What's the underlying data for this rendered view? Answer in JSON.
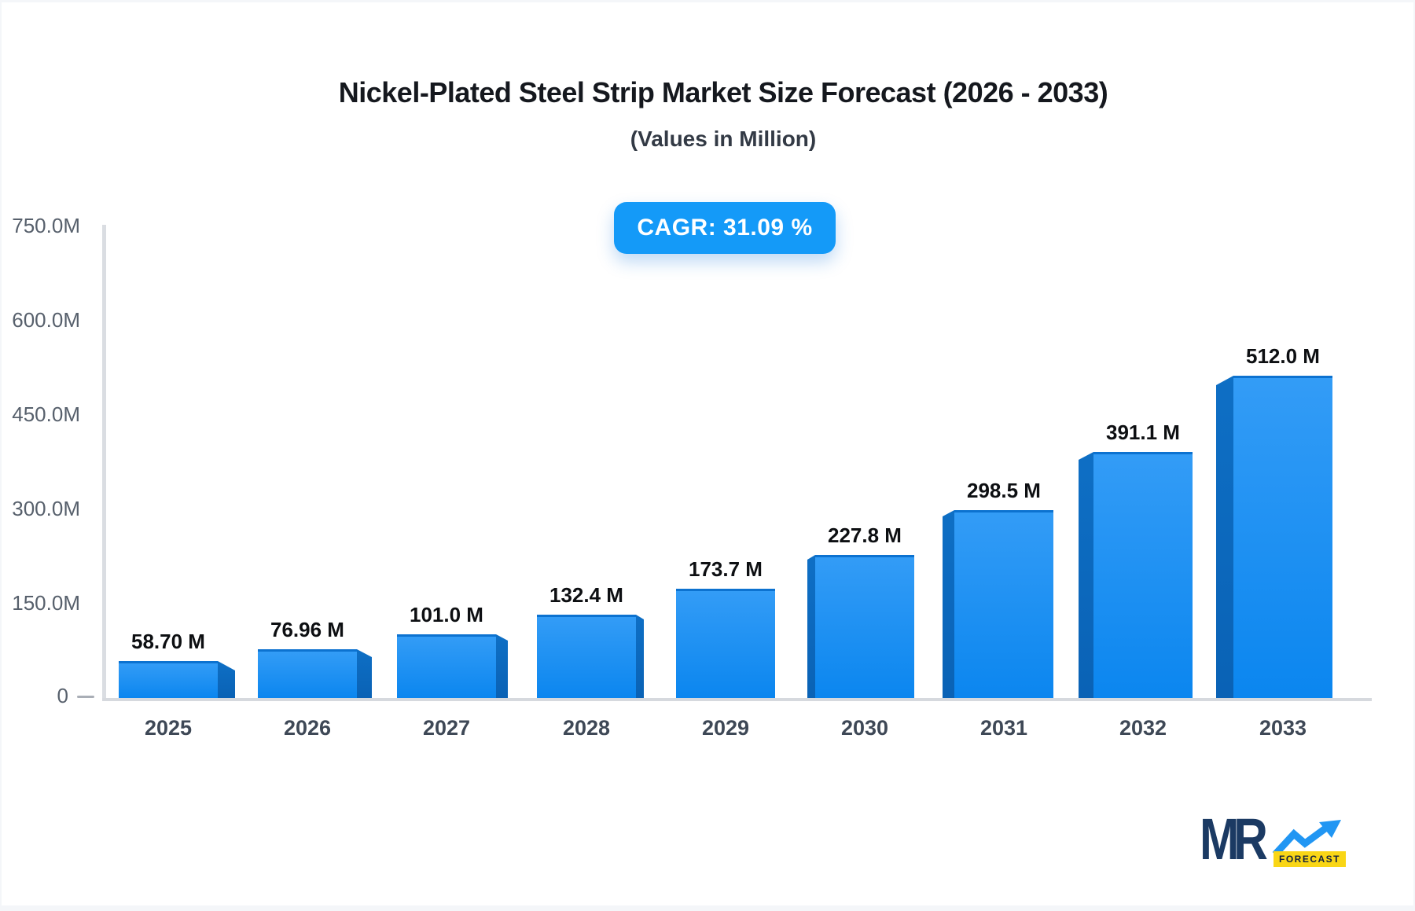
{
  "header": {
    "title": "Nickel-Plated Steel Strip Market Size Forecast (2026 - 2033)",
    "subtitle": "(Values in Million)",
    "cagr_label": "CAGR: 31.09 %"
  },
  "chart_data": {
    "type": "bar",
    "categories": [
      "2025",
      "2026",
      "2027",
      "2028",
      "2029",
      "2030",
      "2031",
      "2032",
      "2033"
    ],
    "values": [
      58.7,
      76.96,
      101.0,
      132.4,
      173.7,
      227.8,
      298.5,
      391.1,
      512.0
    ],
    "value_labels": [
      "58.70 M",
      "76.96 M",
      "101.0 M",
      "132.4 M",
      "173.7 M",
      "227.8 M",
      "298.5 M",
      "391.1 M",
      "512.0 M"
    ],
    "unit": "Million",
    "ylim": [
      0,
      750
    ],
    "yticks": [
      0,
      150,
      300,
      450,
      600,
      750
    ],
    "ytick_labels": [
      "0",
      "150.0M",
      "300.0M",
      "450.0M",
      "600.0M",
      "750.0M"
    ],
    "grid": false,
    "legend": false,
    "bar_style": "3d-blue-gradient"
  },
  "colors": {
    "bar_top": "#339cf6",
    "bar_bottom": "#0b86ef",
    "bar_side": "#0e6fc5",
    "badge_blue": "#149af8",
    "axis_gray": "#d6d9de",
    "logo_navy": "#1b3a63",
    "logo_yellow": "#f9d616",
    "logo_arrow_blue": "#2196f3"
  },
  "logo": {
    "brand": "MR",
    "sub": "FORECAST"
  }
}
